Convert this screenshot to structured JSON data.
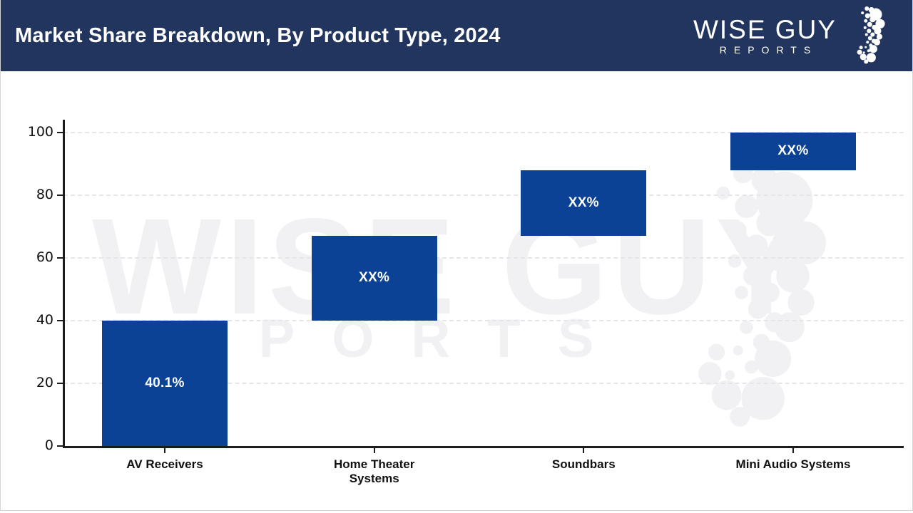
{
  "header": {
    "title": "Market Share Breakdown, By Product Type, 2024",
    "logo": {
      "wordmark": "WISE GUY",
      "subtext": "REPORTS"
    }
  },
  "watermark": {
    "line1": "WISE GUY",
    "line2": "REPORTS"
  },
  "colors": {
    "header_bg": "#21355F",
    "bar": "#0B4296",
    "bar_label": "#FFFFFF",
    "axis": "#1C1C1C",
    "gridline": "#E6E6E8",
    "tick_label": "#111111",
    "watermark": "#F1F1F4",
    "frame_border": "#D6D6D8"
  },
  "chart_data": {
    "type": "bar",
    "subtype": "stacked-waterfall",
    "title": "Market Share Breakdown, By Product Type, 2024",
    "categories": [
      "AV Receivers",
      "Home Theater Systems",
      "Soundbars",
      "Mini Audio Systems"
    ],
    "category_label_lines": [
      [
        "AV Receivers"
      ],
      [
        "Home Theater",
        "Systems"
      ],
      [
        "Soundbars"
      ],
      [
        "Mini Audio Systems"
      ]
    ],
    "segments": [
      {
        "category": "AV Receivers",
        "start": 0,
        "end": 40.1,
        "value": 40.1,
        "label": "40.1%"
      },
      {
        "category": "Home Theater Systems",
        "start": 40.1,
        "end": 67,
        "value": 26.9,
        "label": "XX%"
      },
      {
        "category": "Soundbars",
        "start": 67,
        "end": 88,
        "value": 21,
        "label": "XX%"
      },
      {
        "category": "Mini Audio Systems",
        "start": 88,
        "end": 100,
        "value": 12,
        "label": "XX%"
      }
    ],
    "xlabel": "",
    "ylabel": "",
    "ylim": [
      0,
      100
    ],
    "yticks": [
      0,
      20,
      40,
      60,
      80,
      100
    ],
    "grid": "horizontal-dashed",
    "legend": "none"
  }
}
